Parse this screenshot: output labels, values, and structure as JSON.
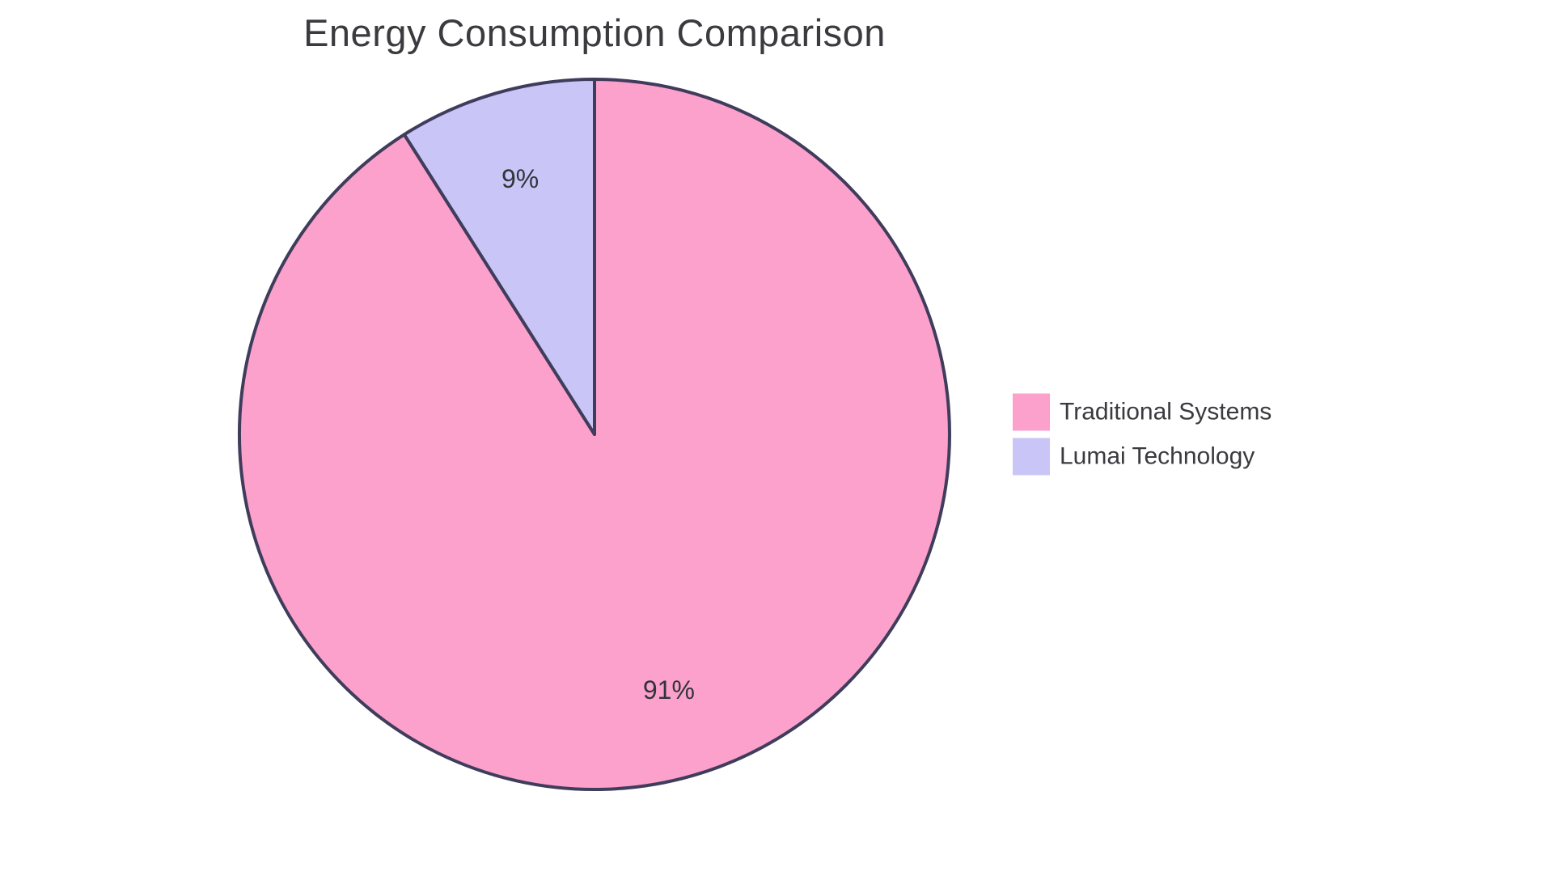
{
  "chart_data": {
    "type": "pie",
    "title": "Energy Consumption Comparison",
    "labels": [
      "Traditional Systems",
      "Lumai Technology"
    ],
    "values": [
      91,
      9
    ],
    "slice_labels": [
      "91%",
      "9%"
    ],
    "colors": [
      "#FBA1CB",
      "#C9C6F7"
    ],
    "start_angle_deg": -90,
    "direction": "clockwise",
    "stroke_color": "#3F3C5C",
    "label_color": "#33333A",
    "legend_position": "right"
  },
  "legend": {
    "items": [
      {
        "label": "Traditional Systems",
        "color": "#FBA1CB"
      },
      {
        "label": "Lumai Technology",
        "color": "#C9C6F7"
      }
    ]
  }
}
